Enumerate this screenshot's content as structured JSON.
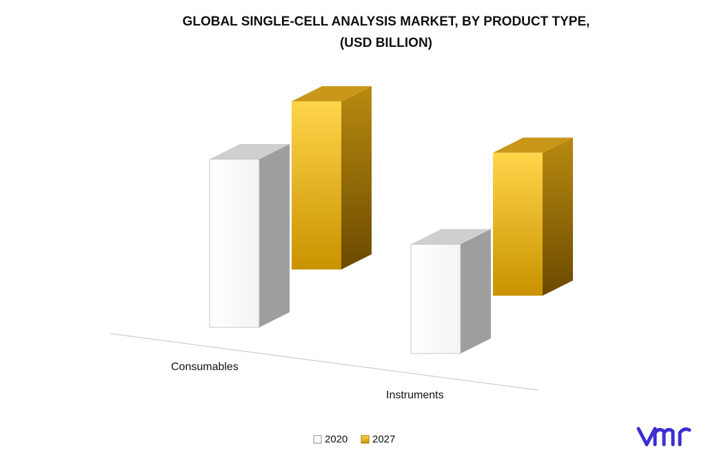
{
  "chart_data": {
    "type": "bar",
    "title": "GLOBAL SINGLE-CELL ANALYSIS MARKET, BY PRODUCT TYPE, (USD BILLION)",
    "title_lines": [
      "GLOBAL SINGLE-CELL ANALYSIS MARKET, BY PRODUCT TYPE,",
      "(USD BILLION)"
    ],
    "categories": [
      "Consumables",
      "Instruments"
    ],
    "series": [
      {
        "name": "2020",
        "values": [
          2.0,
          1.3
        ],
        "color": "#ffffff"
      },
      {
        "name": "2027",
        "values": [
          2.0,
          1.7
        ],
        "color": "#e0a800"
      }
    ],
    "style": "3d-column",
    "grid": false,
    "legend_position": "bottom"
  },
  "logo": {
    "text": "vmr",
    "color": "#3d2fd0"
  }
}
